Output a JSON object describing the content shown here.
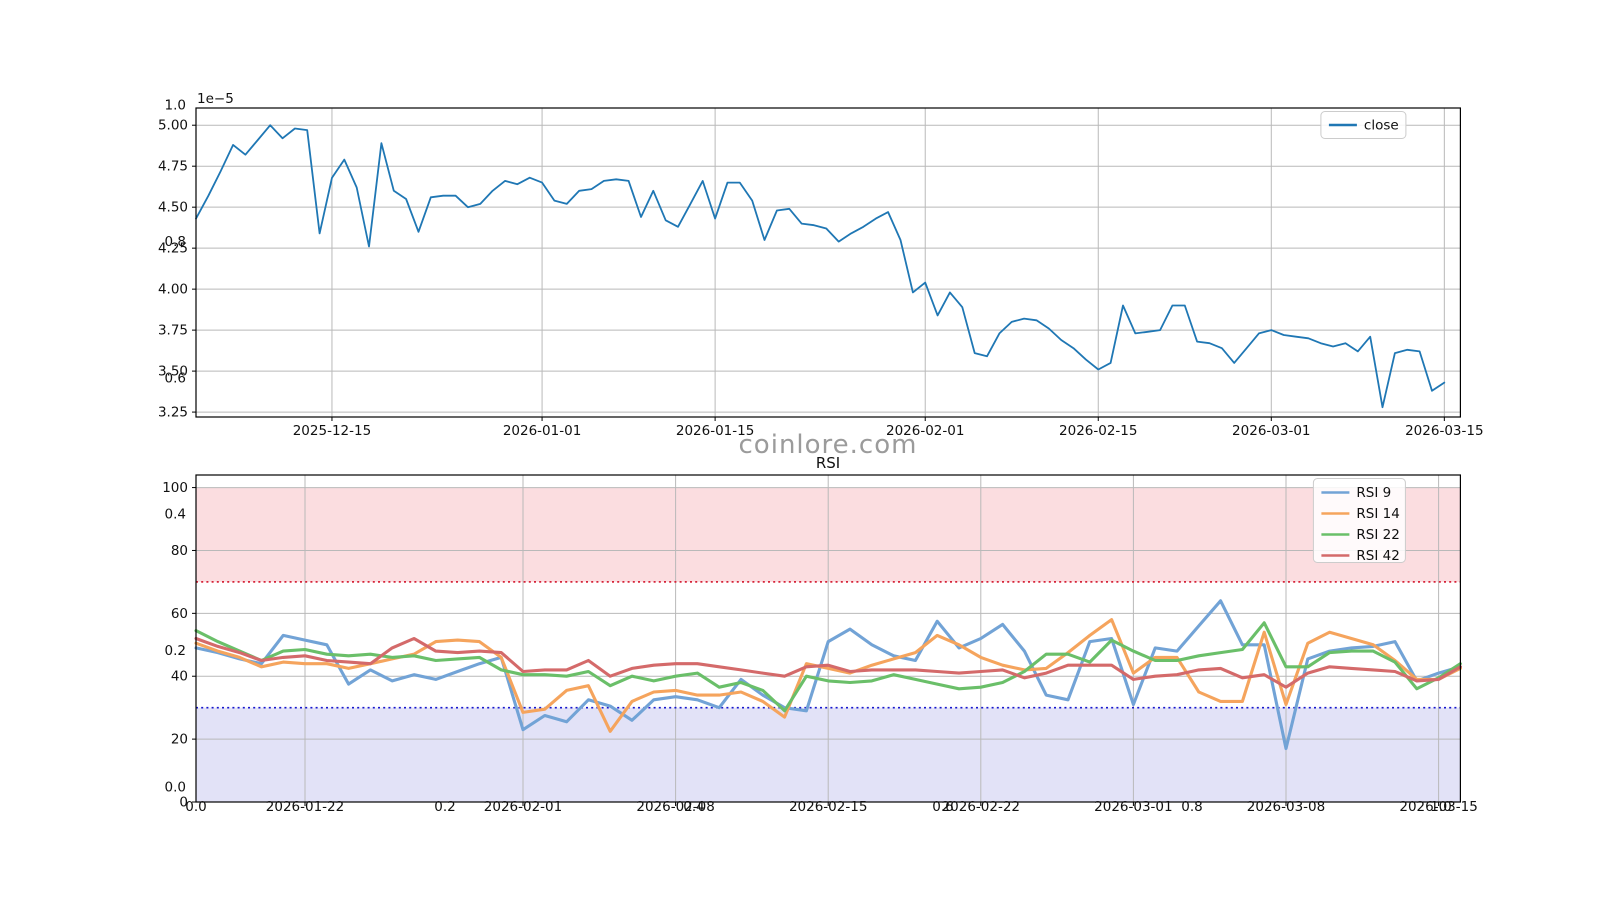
{
  "watermark": "coinlore.com",
  "colors": {
    "grid": "#b9b9b9",
    "frame": "#000000",
    "tick_text": "#111111",
    "watermark": "#9b9b9b",
    "legend_border": "#cccccc",
    "overbought_band": "#fbdde0",
    "oversold_band": "#e2e2f7",
    "overbought_line": "#d62439",
    "oversold_line": "#1616cd"
  },
  "phantom_axis": {
    "y_labels": [
      {
        "v": 1.0,
        "label": "1.0"
      },
      {
        "v": 0.8,
        "label": "0.8"
      },
      {
        "v": 0.6,
        "label": "0.6"
      },
      {
        "v": 0.4,
        "label": "0.4"
      },
      {
        "v": 0.2,
        "label": "0.2"
      },
      {
        "v": 0.0,
        "label": "0.0"
      }
    ],
    "x_labels": [
      {
        "v": 0.0,
        "label": "0.0"
      },
      {
        "v": 0.2,
        "label": "0.2"
      },
      {
        "v": 0.4,
        "label": "0.4"
      },
      {
        "v": 0.6,
        "label": "0.6"
      },
      {
        "v": 0.8,
        "label": "0.8"
      },
      {
        "v": 1.0,
        "label": "1.0"
      }
    ]
  },
  "chart_data": [
    {
      "id": "price",
      "type": "line",
      "title": "",
      "y_offset_label": "1e−5",
      "x_start_date": "2025-12-04",
      "x_unit": "day",
      "xlim": [
        0,
        102.3
      ],
      "ylim": [
        3.22,
        5.105
      ],
      "grid": true,
      "y_ticks": [
        {
          "v": 5.0,
          "label": "5.00"
        },
        {
          "v": 4.75,
          "label": "4.75"
        },
        {
          "v": 4.5,
          "label": "4.50"
        },
        {
          "v": 4.25,
          "label": "4.25"
        },
        {
          "v": 4.0,
          "label": "4.00"
        },
        {
          "v": 3.75,
          "label": "3.75"
        },
        {
          "v": 3.5,
          "label": "3.50"
        },
        {
          "v": 3.25,
          "label": "3.25"
        }
      ],
      "x_ticks": [
        {
          "d": 11,
          "label": "2025-12-15"
        },
        {
          "d": 28,
          "label": "2026-01-01"
        },
        {
          "d": 42,
          "label": "2026-01-15"
        },
        {
          "d": 59,
          "label": "2026-02-01"
        },
        {
          "d": 73,
          "label": "2026-02-15"
        },
        {
          "d": 87,
          "label": "2026-03-01"
        },
        {
          "d": 101,
          "label": "2026-03-15"
        }
      ],
      "legend": {
        "position": "upper right",
        "entries": [
          {
            "label": "close",
            "color": "#1f77b4"
          }
        ]
      },
      "series": [
        {
          "name": "close",
          "color": "#1f77b4",
          "width": 1.8,
          "values": [
            4.43,
            4.57,
            4.72,
            4.88,
            4.82,
            4.91,
            5.0,
            4.92,
            4.98,
            4.97,
            4.34,
            4.68,
            4.79,
            4.62,
            4.26,
            4.89,
            4.6,
            4.55,
            4.35,
            4.56,
            4.57,
            4.57,
            4.5,
            4.52,
            4.6,
            4.66,
            4.64,
            4.68,
            4.65,
            4.54,
            4.52,
            4.6,
            4.61,
            4.66,
            4.67,
            4.66,
            4.44,
            4.6,
            4.42,
            4.38,
            4.52,
            4.66,
            4.43,
            4.65,
            4.65,
            4.54,
            4.3,
            4.48,
            4.49,
            4.4,
            4.39,
            4.37,
            4.29,
            4.34,
            4.38,
            4.43,
            4.47,
            4.3,
            3.98,
            4.04,
            3.84,
            3.98,
            3.89,
            3.61,
            3.59,
            3.73,
            3.8,
            3.82,
            3.81,
            3.76,
            3.69,
            3.64,
            3.57,
            3.51,
            3.55,
            3.9,
            3.73,
            3.74,
            3.75,
            3.9,
            3.9,
            3.68,
            3.67,
            3.64,
            3.55,
            3.64,
            3.73,
            3.75,
            3.72,
            3.71,
            3.7,
            3.67,
            3.65,
            3.67,
            3.62,
            3.71,
            3.28,
            3.61,
            3.63,
            3.62,
            3.38,
            3.43
          ]
        }
      ]
    },
    {
      "id": "rsi",
      "type": "line",
      "title": "RSI",
      "x_start_date": "2026-01-17",
      "x_unit": "day",
      "xlim": [
        0,
        58
      ],
      "ylim": [
        0,
        104
      ],
      "grid": true,
      "y_ticks": [
        {
          "v": 100,
          "label": "100"
        },
        {
          "v": 80,
          "label": "80"
        },
        {
          "v": 60,
          "label": "60"
        },
        {
          "v": 40,
          "label": "40"
        },
        {
          "v": 20,
          "label": "20"
        },
        {
          "v": 0,
          "label": "0"
        }
      ],
      "x_ticks": [
        {
          "d": 5,
          "label": "2026-01-22"
        },
        {
          "d": 15,
          "label": "2026-02-01"
        },
        {
          "d": 22,
          "label": "2026-02-08"
        },
        {
          "d": 29,
          "label": "2026-02-15"
        },
        {
          "d": 36,
          "label": "2026-02-22"
        },
        {
          "d": 43,
          "label": "2026-03-01"
        },
        {
          "d": 50,
          "label": "2026-03-08"
        },
        {
          "d": 57,
          "label": "2026-03-15"
        }
      ],
      "bands": [
        {
          "from": 70,
          "to": 100,
          "color": "#fbdde0"
        },
        {
          "from": 0,
          "to": 30,
          "color": "#e2e2f7"
        }
      ],
      "hlines": [
        {
          "v": 70,
          "color": "#d62439",
          "style": "dotted"
        },
        {
          "v": 30,
          "color": "#1616cd",
          "style": "dotted"
        }
      ],
      "legend": {
        "position": "upper right",
        "entries": [
          {
            "label": "RSI 9",
            "color": "#72a3d6"
          },
          {
            "label": "RSI 14",
            "color": "#f5a45d"
          },
          {
            "label": "RSI 22",
            "color": "#6abf69"
          },
          {
            "label": "RSI 42",
            "color": "#d46a6a"
          }
        ]
      },
      "series": [
        {
          "name": "RSI 9",
          "color": "#72a3d6",
          "width": 3.1,
          "values": [
            49,
            47.5,
            45.5,
            44,
            53,
            51.5,
            50,
            37.5,
            42,
            38.5,
            40.5,
            39,
            41.5,
            44,
            46,
            23,
            27.5,
            25.5,
            32.5,
            30.5,
            26,
            32.5,
            33.5,
            32.5,
            30,
            39,
            34,
            30,
            29,
            51,
            55,
            50,
            46.5,
            45,
            57.5,
            49,
            52,
            56.5,
            48,
            34,
            32.5,
            51,
            52,
            31,
            49,
            48,
            56,
            64,
            50,
            50,
            17,
            45.5,
            48,
            49,
            49.5,
            51,
            38.5,
            41,
            43
          ]
        },
        {
          "name": "RSI 14",
          "color": "#f5a45d",
          "width": 3.1,
          "values": [
            50.5,
            48,
            46,
            43,
            44.5,
            44,
            44,
            42.5,
            44,
            45.5,
            47,
            51,
            51.5,
            51,
            46,
            28.5,
            29.5,
            35.5,
            37,
            22.5,
            32,
            35,
            35.5,
            34,
            34,
            35,
            32,
            27,
            44,
            42.5,
            41,
            43.5,
            45.5,
            47.5,
            53,
            50,
            46,
            43.5,
            42,
            42.5,
            47.5,
            53,
            58,
            41,
            46,
            46,
            35,
            32,
            32,
            54,
            31,
            50.5,
            54,
            52,
            50,
            45,
            39,
            39,
            42.5
          ]
        },
        {
          "name": "RSI 22",
          "color": "#6abf69",
          "width": 3.1,
          "values": [
            54.5,
            51,
            48,
            45,
            48,
            48.5,
            47,
            46.5,
            47,
            46,
            46.5,
            45,
            45.5,
            46,
            42,
            40.5,
            40.5,
            40,
            41.5,
            37,
            40,
            38.5,
            40,
            41,
            36.5,
            38,
            35.5,
            29,
            40,
            38.5,
            38,
            38.5,
            40.5,
            39,
            37.5,
            36,
            36.5,
            38,
            41.5,
            47,
            47,
            44.5,
            51.5,
            48,
            45,
            45,
            46.5,
            47.5,
            48.5,
            57,
            43,
            43,
            47.5,
            48,
            48,
            44.5,
            36,
            39.5,
            44
          ]
        },
        {
          "name": "RSI 42",
          "color": "#d46a6a",
          "width": 3.1,
          "values": [
            52,
            49.5,
            47.5,
            45,
            46,
            46.5,
            45,
            44.5,
            44,
            49,
            52,
            48,
            47.5,
            48,
            47.5,
            41.5,
            42,
            42,
            45,
            40,
            42.5,
            43.5,
            44,
            44,
            43,
            42,
            41,
            40,
            43,
            43.5,
            41.5,
            42,
            42,
            42,
            41.5,
            41,
            41.5,
            42,
            39.5,
            41,
            43.5,
            43.5,
            43.5,
            39,
            40,
            40.5,
            42,
            42.5,
            39.5,
            40.5,
            36.5,
            41,
            43,
            42.5,
            42,
            41.5,
            38.5,
            39,
            43
          ]
        }
      ]
    }
  ]
}
